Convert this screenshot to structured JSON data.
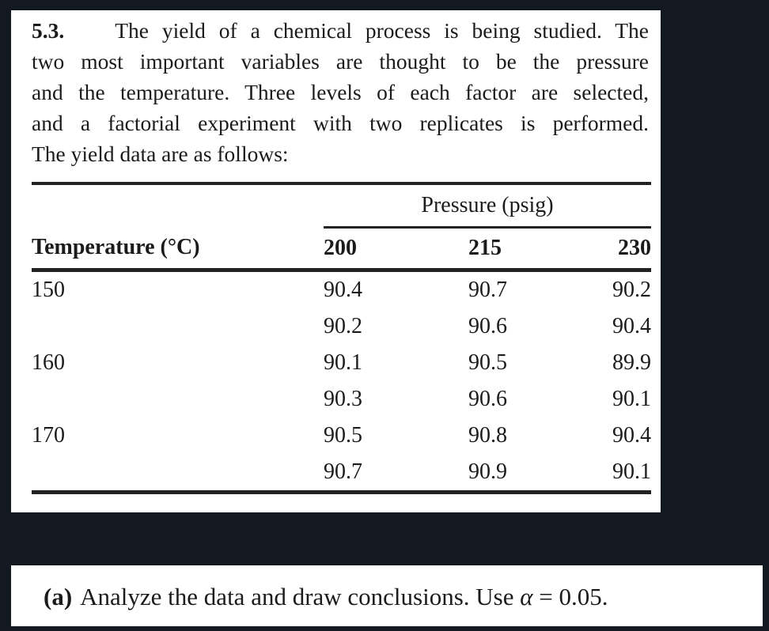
{
  "page": {
    "background_color": "#121921",
    "panel_color": "#ffffff",
    "text_color": "#1b1b1b"
  },
  "problem": {
    "number": "5.3.",
    "lines": [
      "The yield of a chemical process is being studied. The",
      "two most important variables are thought to be the pressure",
      "and the temperature. Three levels of each factor are selected,",
      "and a factorial experiment with two replicates is performed.",
      "The yield data are as follows:"
    ]
  },
  "table": {
    "pressure_group_header": "Pressure (psig)",
    "row_header": "Temperature (°C)",
    "pressure_levels": [
      "200",
      "215",
      "230"
    ],
    "rows": [
      {
        "temperature": "150",
        "values": [
          "90.4",
          "90.7",
          "90.2"
        ]
      },
      {
        "temperature": "",
        "values": [
          "90.2",
          "90.6",
          "90.4"
        ]
      },
      {
        "temperature": "160",
        "values": [
          "90.1",
          "90.5",
          "89.9"
        ]
      },
      {
        "temperature": "",
        "values": [
          "90.3",
          "90.6",
          "90.1"
        ]
      },
      {
        "temperature": "170",
        "values": [
          "90.5",
          "90.8",
          "90.4"
        ]
      },
      {
        "temperature": "",
        "values": [
          "90.7",
          "90.9",
          "90.1"
        ]
      }
    ]
  },
  "part_a": {
    "label": "(a)",
    "text_before_alpha": "Analyze the data and draw conclusions. Use ",
    "alpha_symbol": "α",
    "text_after_alpha": " = 0.05."
  }
}
